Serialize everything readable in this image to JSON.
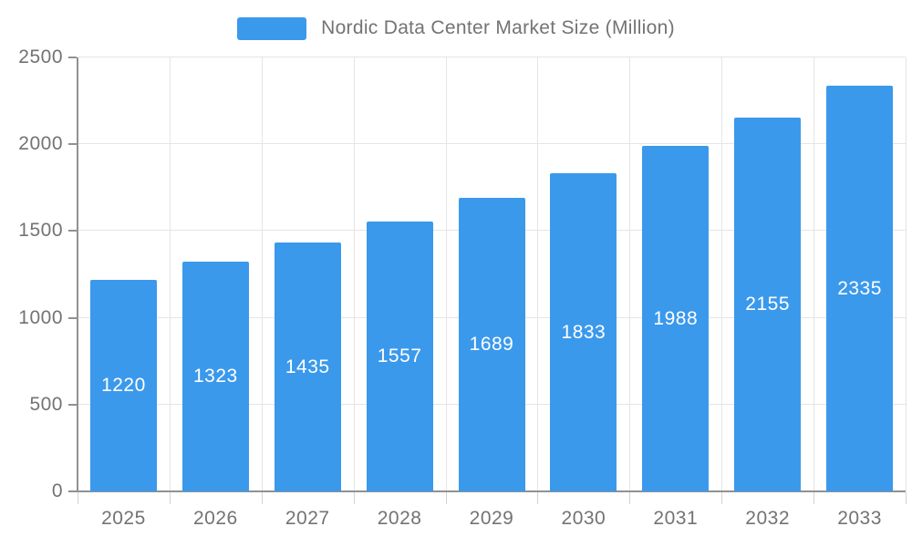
{
  "chart_data": {
    "type": "bar",
    "title": "Nordic Data Center Market Size (Million)",
    "legend": {
      "label": "Nordic Data Center Market Size (Million)",
      "position": "top"
    },
    "categories": [
      "2025",
      "2026",
      "2027",
      "2028",
      "2029",
      "2030",
      "2031",
      "2032",
      "2033"
    ],
    "values": [
      1220,
      1323,
      1435,
      1557,
      1689,
      1833,
      1988,
      2155,
      2335
    ],
    "xlabel": "",
    "ylabel": "",
    "ylim": [
      0,
      2500
    ],
    "yticks": [
      0,
      500,
      1000,
      1500,
      2000,
      2500
    ],
    "grid": true,
    "value_labels_shown": true,
    "colors": {
      "bar": "#3b99ec",
      "grid": "#e5e5e5",
      "axis": "#919191",
      "x_tick_mark": "#d2d2d2",
      "tick_text": "#737373",
      "legend_text": "#737373",
      "value_label": "#ffffff",
      "background": "#ffffff"
    }
  }
}
